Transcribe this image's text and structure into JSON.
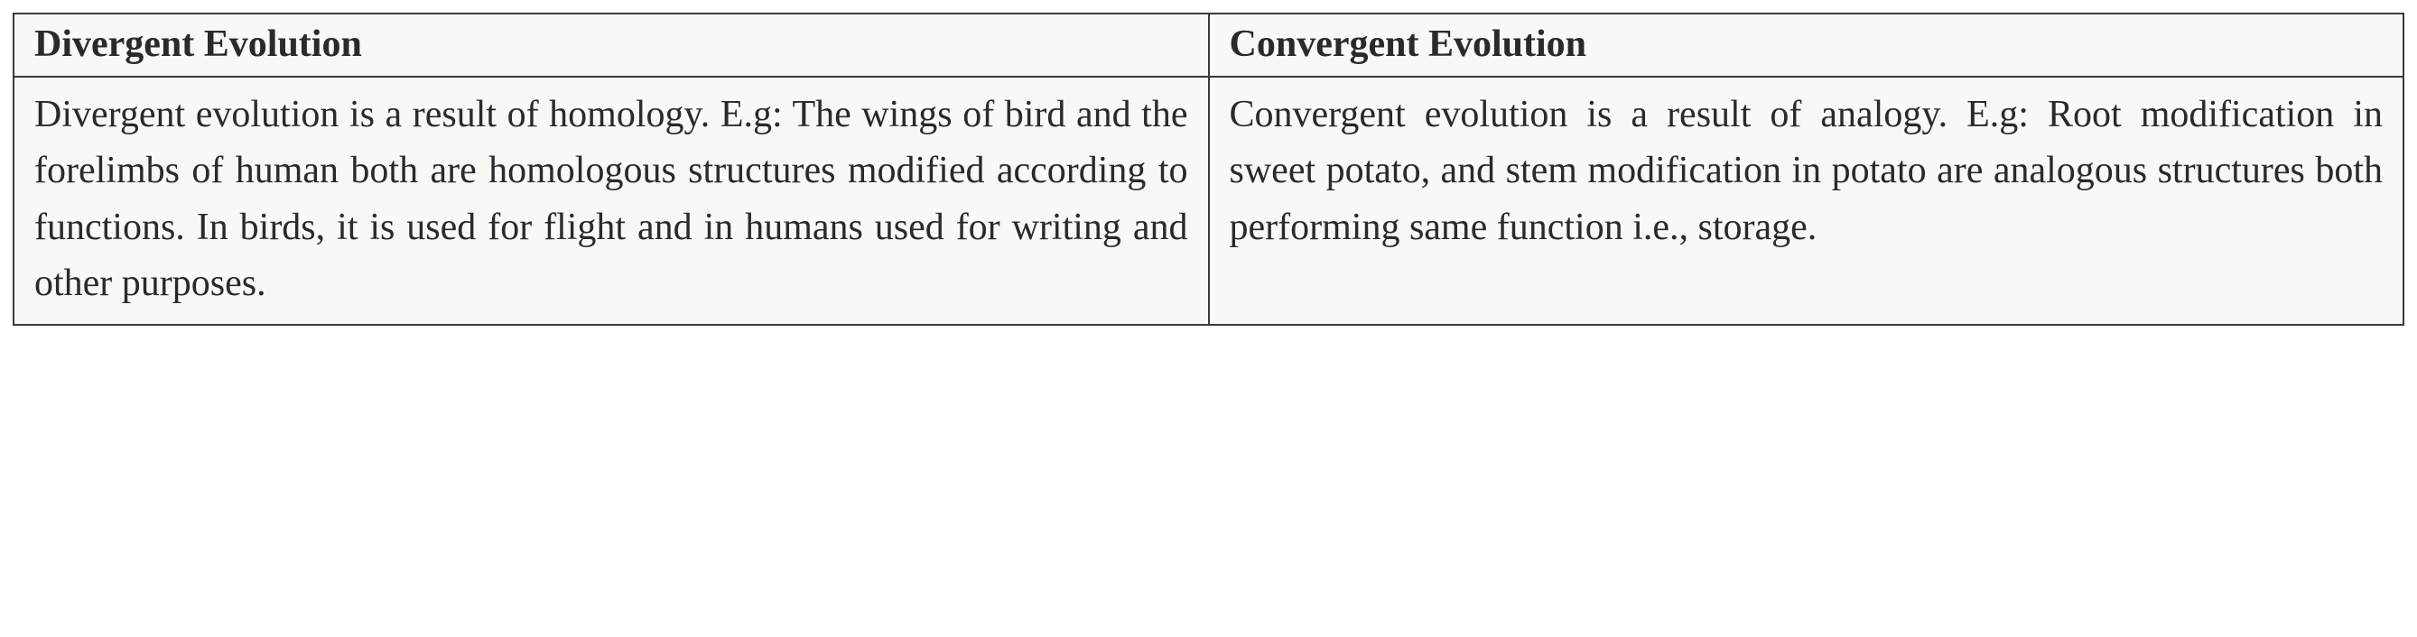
{
  "table": {
    "background_color": "#f8f8f5",
    "border_color": "#3a3a3a",
    "text_color": "#2a2a2a",
    "header_font_size_pt": 32,
    "body_font_size_pt": 32,
    "columns": [
      {
        "header": "Divergent Evolution"
      },
      {
        "header": "Convergent Evolution"
      }
    ],
    "rows": [
      {
        "left": "Divergent evolution is a result of homology. E.g: The wings of bird and the forelimbs of human both are homologous structures modified according to functions. In birds, it is used for flight and in humans used for writing and other purposes.",
        "right": "Convergent evolution is a result of analogy. E.g: Root modification in sweet potato, and stem modification in potato are analogous structures both performing same function i.e., storage."
      }
    ]
  }
}
